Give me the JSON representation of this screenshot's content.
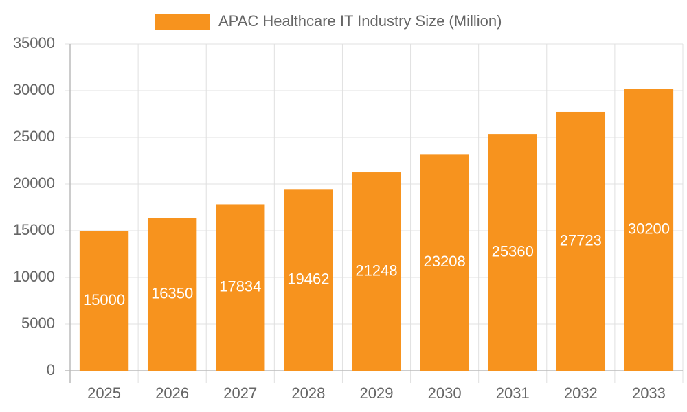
{
  "chart_data": {
    "type": "bar",
    "categories": [
      "2025",
      "2026",
      "2027",
      "2028",
      "2029",
      "2030",
      "2031",
      "2032",
      "2033"
    ],
    "series": [
      {
        "name": "APAC Healthcare IT Industry Size (Million)",
        "color": "#f7931e",
        "values": [
          15000,
          16350,
          17834,
          19462,
          21248,
          23208,
          25360,
          27723,
          30200
        ]
      }
    ],
    "ylim": [
      0,
      35000
    ],
    "yticks": [
      0,
      5000,
      10000,
      15000,
      20000,
      25000,
      30000,
      35000
    ],
    "grid": true,
    "legend": "top"
  }
}
